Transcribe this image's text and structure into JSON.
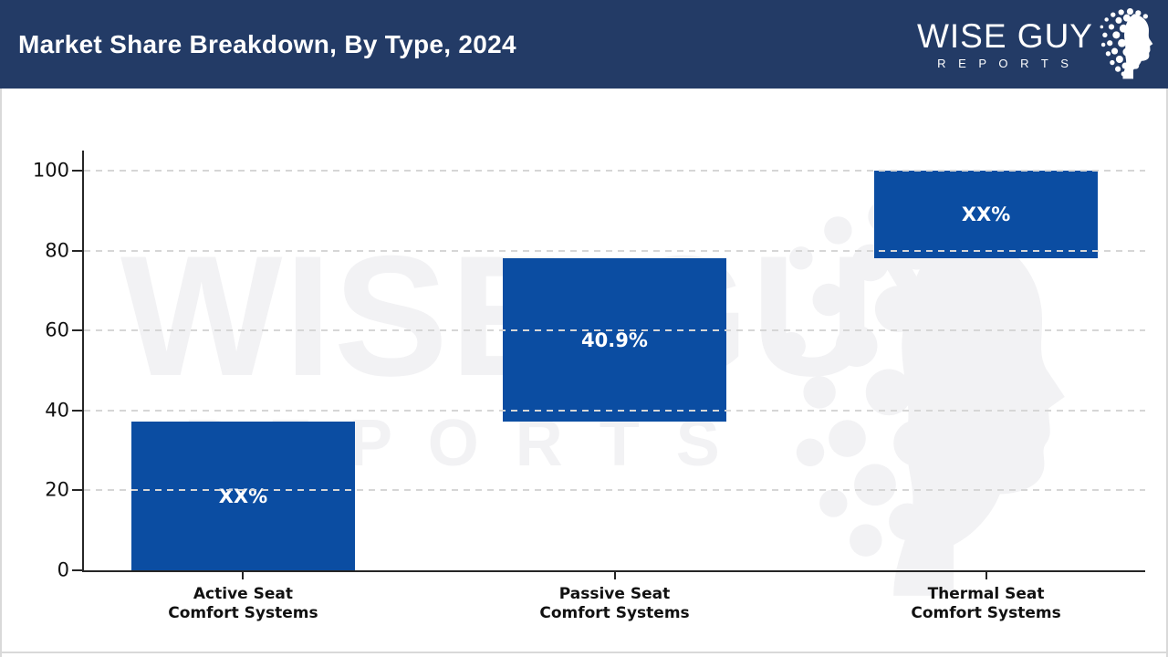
{
  "header": {
    "title": "Market Share Breakdown, By Type, 2024",
    "logo": {
      "name": "WISE GUY",
      "subtitle": "R E P O R T S"
    }
  },
  "watermark": {
    "line1": "WISE GUY",
    "line2": "R E P O R T S"
  },
  "colors": {
    "header_bg": "#233b66",
    "bar": "#0b4da2",
    "axis": "#262626",
    "grid": "#d6d6d6",
    "text": "#111111",
    "title_text": "#ffffff",
    "bar_label_text": "#ffffff",
    "watermark": "#f2f2f4"
  },
  "chart_data": {
    "type": "bar",
    "subtype": "floating-segment-waterfall",
    "title": "Market Share Breakdown, By Type, 2024",
    "categories": [
      "Active Seat Comfort Systems",
      "Passive Seat Comfort Systems",
      "Thermal Seat Comfort Systems"
    ],
    "bars": [
      {
        "category": "Active Seat\nComfort Systems",
        "label": "XX%",
        "start": 0,
        "end": 37.1
      },
      {
        "category": "Passive Seat\nComfort Systems",
        "label": "40.9%",
        "start": 37.1,
        "end": 78.0
      },
      {
        "category": "Thermal Seat\nComfort Systems",
        "label": "XX%",
        "start": 78.0,
        "end": 100
      }
    ],
    "known_values": {
      "Passive Seat Comfort Systems": 40.9
    },
    "yticks": [
      0,
      20,
      40,
      60,
      80,
      100
    ],
    "ylim": [
      0,
      105
    ],
    "xlabel": "",
    "ylabel": "",
    "grid": "horizontal-dashed-over-bars",
    "legend": "none",
    "bar_color": "#0b4da2",
    "layout": {
      "bar_centers_pct": [
        15,
        50,
        85
      ],
      "bar_width_pct": 21
    }
  }
}
